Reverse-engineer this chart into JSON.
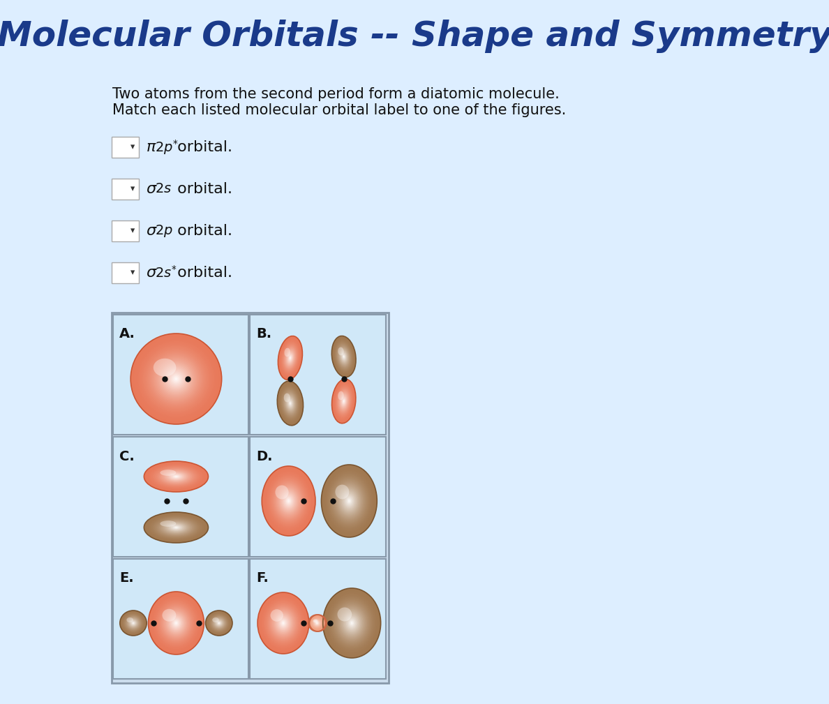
{
  "title": "Molecular Orbitals -- Shape and Symmetry",
  "title_color": "#1a3a8a",
  "bg_color": "#ddeeff",
  "desc_line1": "Two atoms from the second period form a diatomic molecule.",
  "desc_line2": "Match each listed molecular orbital label to one of the figures.",
  "labels": [
    "π 2p* orbital.",
    "σ 2s orbital.",
    "σ 2p orbital.",
    "σ 2s* orbital."
  ],
  "subscripts": [
    "2p",
    "2s",
    "2p",
    "2s"
  ],
  "superscripts": [
    "*",
    "",
    "",
    "*"
  ],
  "prefixes": [
    "π ",
    "σ ",
    "σ ",
    "σ "
  ],
  "panel_bg": "#ccdded",
  "cell_bg": "#d0e8f8",
  "orange_color": "#e8795a",
  "brown_color": "#a07850",
  "grid_border": "#aabbcc"
}
